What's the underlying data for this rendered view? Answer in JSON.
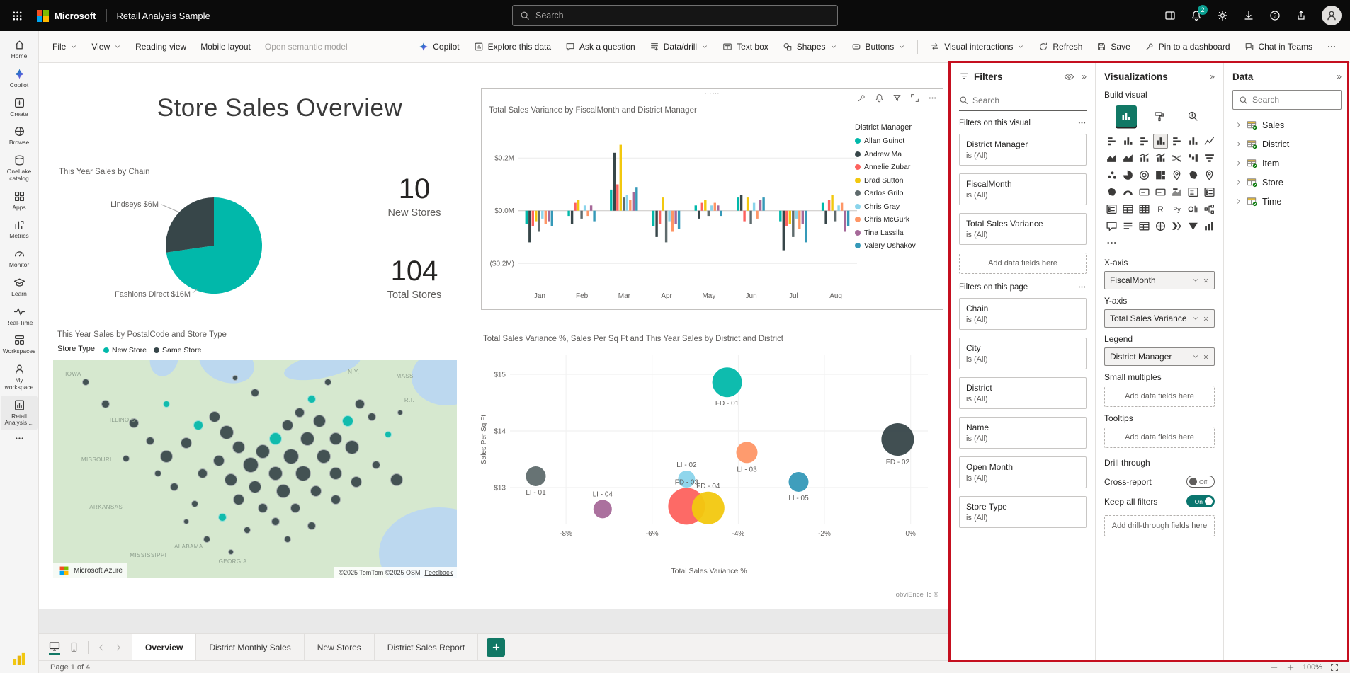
{
  "topbar": {
    "microsoft": "Microsoft",
    "title": "Retail Analysis Sample",
    "search_placeholder": "Search",
    "notification_count": "2"
  },
  "menubar": {
    "left": [
      {
        "label": "File",
        "caret": true
      },
      {
        "label": "View",
        "caret": true
      },
      {
        "label": "Reading view"
      },
      {
        "label": "Mobile layout"
      },
      {
        "label": "Open semantic model",
        "disabled": true
      }
    ],
    "right": [
      {
        "label": "Copilot",
        "icon": "copilot"
      },
      {
        "label": "Explore this data",
        "icon": "explore"
      },
      {
        "label": "Ask a question",
        "icon": "question"
      },
      {
        "label": "Data/drill",
        "icon": "datadrill",
        "caret": true
      },
      {
        "label": "Text box",
        "icon": "textbox"
      },
      {
        "label": "Shapes",
        "icon": "shapes",
        "caret": true
      },
      {
        "label": "Buttons",
        "icon": "buttons",
        "caret": true
      },
      {
        "label": "Visual interactions",
        "icon": "interactions",
        "caret": true,
        "divider_before": true
      },
      {
        "label": "Refresh",
        "icon": "refresh"
      },
      {
        "label": "Save",
        "icon": "save"
      },
      {
        "label": "Pin to a dashboard",
        "icon": "pin"
      },
      {
        "label": "Chat in Teams",
        "icon": "teams"
      },
      {
        "label": "",
        "icon": "more",
        "more": true
      }
    ]
  },
  "sidebar": {
    "items": [
      {
        "label": "Home",
        "icon": "home"
      },
      {
        "label": "Copilot",
        "icon": "copilotColor"
      },
      {
        "label": "Create",
        "icon": "create"
      },
      {
        "label": "Browse",
        "icon": "browse"
      },
      {
        "label": "OneLake catalog",
        "icon": "onelake"
      },
      {
        "label": "Apps",
        "icon": "apps"
      },
      {
        "label": "Metrics",
        "icon": "metrics"
      },
      {
        "label": "Monitor",
        "icon": "monitor"
      },
      {
        "label": "Learn",
        "icon": "learn"
      },
      {
        "label": "Real-Time",
        "icon": "realtime"
      },
      {
        "label": "Workspaces",
        "icon": "workspaces"
      },
      {
        "label": "My workspace",
        "icon": "myworkspace"
      },
      {
        "label": "Retail Analysis ...",
        "icon": "report",
        "active": true
      }
    ],
    "product": "Power BI"
  },
  "report": {
    "title": "Store Sales Overview",
    "kpis": [
      {
        "value": "10",
        "label": "New Stores"
      },
      {
        "value": "104",
        "label": "Total Stores"
      }
    ],
    "map_attribution_left": "Microsoft Azure",
    "map_attribution_right": "©2025 TomTom ©2025 OSM",
    "map_feedback": "Feedback",
    "scatter_watermark": "obviEnce llc ©"
  },
  "chart_data": [
    {
      "id": "pie",
      "type": "pie",
      "title": "This Year Sales by Chain",
      "slices": [
        {
          "label": "Fashions Direct",
          "value": 16,
          "display": "Fashions Direct $16M",
          "color": "#01B8AA"
        },
        {
          "label": "Lindseys",
          "value": 6,
          "display": "Lindseys $6M",
          "color": "#374649"
        }
      ]
    },
    {
      "id": "variance-bar",
      "type": "bar",
      "selected": true,
      "title": "Total Sales Variance by FiscalMonth and District Manager",
      "legend_title": "District Manager",
      "categories": [
        "Jan",
        "Feb",
        "Mar",
        "Apr",
        "May",
        "Jun",
        "Jul",
        "Aug"
      ],
      "y_ticks": [
        "$0.2M",
        "$0.0M",
        "($0.2M)"
      ],
      "y_tick_values": [
        0.2,
        0,
        -0.2
      ],
      "ylim": [
        -0.28,
        0.3
      ],
      "series": [
        {
          "name": "Allan Guinot",
          "color": "#01B8AA",
          "values": [
            -0.05,
            -0.02,
            0.08,
            -0.06,
            0.02,
            0.05,
            -0.04,
            0.03
          ]
        },
        {
          "name": "Andrew Ma",
          "color": "#374649",
          "values": [
            -0.12,
            -0.05,
            0.22,
            -0.1,
            -0.03,
            0.06,
            -0.15,
            -0.05
          ]
        },
        {
          "name": "Annelie Zubar",
          "color": "#FD625E",
          "values": [
            -0.06,
            0.03,
            0.1,
            -0.05,
            0.03,
            -0.04,
            -0.06,
            0.04
          ]
        },
        {
          "name": "Brad Sutton",
          "color": "#F2C80F",
          "values": [
            -0.04,
            0.04,
            0.25,
            0.05,
            0.04,
            0.05,
            -0.05,
            0.06
          ]
        },
        {
          "name": "Carlos Grilo",
          "color": "#5F6B6D",
          "values": [
            -0.08,
            -0.03,
            0.05,
            -0.12,
            -0.02,
            -0.05,
            -0.1,
            -0.04
          ]
        },
        {
          "name": "Chris Gray",
          "color": "#8AD4EB",
          "values": [
            -0.03,
            0.02,
            0.06,
            -0.04,
            0.02,
            0.03,
            -0.03,
            0.02
          ]
        },
        {
          "name": "Chris McGurk",
          "color": "#FE9666",
          "values": [
            -0.05,
            -0.02,
            0.04,
            -0.08,
            0.03,
            -0.03,
            -0.07,
            0.03
          ]
        },
        {
          "name": "Tina Lassila",
          "color": "#A66999",
          "values": [
            -0.04,
            0.02,
            0.07,
            -0.05,
            0.02,
            0.04,
            -0.05,
            -0.08
          ]
        },
        {
          "name": "Valery Ushakov",
          "color": "#3599B8",
          "values": [
            -0.06,
            -0.04,
            0.09,
            -0.07,
            -0.02,
            0.05,
            -0.12,
            -0.06
          ]
        }
      ]
    },
    {
      "id": "map",
      "type": "scatter",
      "subtype": "map",
      "title": "This Year Sales by PostalCode and Store Type",
      "legend_title": "Store Type",
      "legend": [
        {
          "label": "New Store",
          "color": "#01B8AA"
        },
        {
          "label": "Same Store",
          "color": "#374649"
        }
      ],
      "state_labels": [
        {
          "t": "IOWA",
          "x": 3,
          "y": 5
        },
        {
          "t": "ILLINOIS",
          "x": 14,
          "y": 26
        },
        {
          "t": "MISSOURI",
          "x": 7,
          "y": 44
        },
        {
          "t": "ARKANSAS",
          "x": 9,
          "y": 66
        },
        {
          "t": "MISSISSIPPI",
          "x": 19,
          "y": 88
        },
        {
          "t": "ALABAMA",
          "x": 30,
          "y": 84
        },
        {
          "t": "GEORGIA",
          "x": 41,
          "y": 91
        },
        {
          "t": "N.Y.",
          "x": 73,
          "y": 4
        },
        {
          "t": "MASS",
          "x": 85,
          "y": 6
        },
        {
          "t": "R.I.",
          "x": 87,
          "y": 17
        }
      ],
      "points": [
        [
          8,
          10,
          5,
          0
        ],
        [
          13,
          20,
          6,
          0
        ],
        [
          20,
          29,
          7,
          0
        ],
        [
          24,
          37,
          6,
          0
        ],
        [
          18,
          45,
          5,
          0
        ],
        [
          28,
          44,
          9,
          0
        ],
        [
          33,
          38,
          8,
          0
        ],
        [
          36,
          30,
          7,
          1
        ],
        [
          40,
          26,
          8,
          0
        ],
        [
          43,
          33,
          10,
          0
        ],
        [
          46,
          40,
          9,
          0
        ],
        [
          41,
          46,
          8,
          0
        ],
        [
          37,
          52,
          7,
          0
        ],
        [
          44,
          55,
          9,
          0
        ],
        [
          49,
          48,
          11,
          0
        ],
        [
          52,
          42,
          10,
          0
        ],
        [
          55,
          36,
          9,
          1
        ],
        [
          58,
          30,
          8,
          0
        ],
        [
          61,
          24,
          7,
          0
        ],
        [
          64,
          18,
          6,
          1
        ],
        [
          66,
          28,
          9,
          0
        ],
        [
          63,
          36,
          10,
          0
        ],
        [
          59,
          44,
          11,
          0
        ],
        [
          55,
          52,
          10,
          0
        ],
        [
          50,
          58,
          9,
          0
        ],
        [
          46,
          64,
          8,
          0
        ],
        [
          52,
          68,
          7,
          0
        ],
        [
          57,
          60,
          10,
          0
        ],
        [
          62,
          52,
          11,
          0
        ],
        [
          67,
          44,
          10,
          0
        ],
        [
          70,
          36,
          9,
          0
        ],
        [
          73,
          28,
          8,
          1
        ],
        [
          76,
          20,
          7,
          0
        ],
        [
          79,
          26,
          6,
          0
        ],
        [
          74,
          40,
          10,
          0
        ],
        [
          70,
          52,
          9,
          0
        ],
        [
          65,
          60,
          8,
          0
        ],
        [
          60,
          68,
          7,
          0
        ],
        [
          55,
          74,
          6,
          0
        ],
        [
          48,
          78,
          5,
          0
        ],
        [
          42,
          72,
          6,
          1
        ],
        [
          35,
          66,
          5,
          0
        ],
        [
          30,
          58,
          6,
          0
        ],
        [
          26,
          52,
          5,
          0
        ],
        [
          33,
          74,
          4,
          0
        ],
        [
          38,
          82,
          5,
          0
        ],
        [
          44,
          88,
          4,
          0
        ],
        [
          58,
          82,
          5,
          0
        ],
        [
          64,
          76,
          6,
          0
        ],
        [
          70,
          64,
          7,
          0
        ],
        [
          75,
          56,
          8,
          0
        ],
        [
          80,
          48,
          6,
          0
        ],
        [
          83,
          34,
          5,
          1
        ],
        [
          86,
          24,
          4,
          0
        ],
        [
          28,
          20,
          5,
          1
        ],
        [
          85,
          55,
          9,
          0
        ],
        [
          68,
          10,
          5,
          0
        ],
        [
          50,
          15,
          6,
          0
        ],
        [
          45,
          8,
          4,
          0
        ]
      ]
    },
    {
      "id": "bubble",
      "type": "scatter",
      "title": "Total Sales Variance %, Sales Per Sq Ft and This Year Sales by District and District",
      "xlabel": "Total Sales Variance %",
      "ylabel": "Sales Per Sq Ft",
      "x_ticks": [
        "-8%",
        "-6%",
        "-4%",
        "-2%",
        "0%"
      ],
      "x_tick_values": [
        -8,
        -6,
        -4,
        -2,
        0
      ],
      "y_ticks": [
        "$13",
        "$14",
        "$15"
      ],
      "y_tick_values": [
        13,
        14,
        15
      ],
      "xlim": [
        -9.3,
        0.4
      ],
      "ylim": [
        12.35,
        15.35
      ],
      "points": [
        {
          "label": "LI - 01",
          "x": -8.7,
          "y": 13.2,
          "r": 14,
          "color": "#5F6B6D",
          "label_pos": "below"
        },
        {
          "label": "LI - 04",
          "x": -7.15,
          "y": 12.62,
          "r": 13,
          "color": "#A66999",
          "label_pos": "above"
        },
        {
          "label": "LI - 02",
          "x": -5.2,
          "y": 13.15,
          "r": 12,
          "color": "#8AD4EB",
          "label_pos": "above"
        },
        {
          "label": "FD - 03",
          "x": -5.2,
          "y": 12.67,
          "r": 26,
          "color": "#FD625E",
          "label_pos": "above"
        },
        {
          "label": "FD - 04",
          "x": -4.7,
          "y": 12.64,
          "r": 23,
          "color": "#F2C80F",
          "label_pos": "above"
        },
        {
          "label": "FD - 01",
          "x": -4.26,
          "y": 14.86,
          "r": 21,
          "color": "#01B8AA",
          "label_pos": "below"
        },
        {
          "label": "LI - 03",
          "x": -3.8,
          "y": 13.62,
          "r": 15,
          "color": "#FE9666",
          "label_pos": "below"
        },
        {
          "label": "LI - 05",
          "x": -2.6,
          "y": 13.1,
          "r": 14,
          "color": "#3599B8",
          "label_pos": "below"
        },
        {
          "label": "FD - 02",
          "x": -0.3,
          "y": 13.85,
          "r": 23,
          "color": "#374649",
          "label_pos": "below"
        }
      ]
    }
  ],
  "filters_panel": {
    "title": "Filters",
    "search_placeholder": "Search",
    "sections": [
      {
        "heading": "Filters on this visual",
        "cards": [
          {
            "name": "District Manager",
            "value": "is (All)"
          },
          {
            "name": "FiscalMonth",
            "value": "is (All)"
          },
          {
            "name": "Total Sales Variance",
            "value": "is (All)"
          }
        ],
        "placeholder": "Add data fields here"
      },
      {
        "heading": "Filters on this page",
        "cards": [
          {
            "name": "Chain",
            "value": "is (All)"
          },
          {
            "name": "City",
            "value": "is (All)"
          },
          {
            "name": "District",
            "value": "is (All)"
          },
          {
            "name": "Name",
            "value": "is (All)"
          },
          {
            "name": "Open Month",
            "value": "is (All)"
          },
          {
            "name": "Store Type",
            "value": "is (All)"
          }
        ]
      }
    ]
  },
  "viz_panel": {
    "title": "Visualizations",
    "build_label": "Build visual",
    "selected_visual": "clustered-column-chart",
    "visual_types": [
      "stacked-bar-chart",
      "stacked-column-chart",
      "clustered-bar-chart",
      "clustered-column-chart",
      "100-stacked-bar-chart",
      "100-stacked-column-chart",
      "line-chart",
      "area-chart",
      "stacked-area-chart",
      "line-and-stacked-column-chart",
      "line-and-clustered-column-chart",
      "ribbon-chart",
      "waterfall-chart",
      "funnel-chart",
      "scatter-chart",
      "pie-chart",
      "donut-chart",
      "treemap",
      "map",
      "filled-map",
      "azure-map",
      "shape-map",
      "gauge",
      "card",
      "new-card",
      "kpi",
      "multi-row-card",
      "slicer",
      "new-slicer",
      "table",
      "matrix",
      "r-script-visual",
      "python-visual",
      "key-influencers",
      "decomposition-tree",
      "q-and-a",
      "smart-narrative",
      "paginated-report",
      "arcgis-map",
      "power-apps",
      "power-automate",
      "metrics",
      "get-more-visuals"
    ],
    "wells": [
      {
        "label": "X-axis",
        "pill": "FiscalMonth"
      },
      {
        "label": "Y-axis",
        "pill": "Total Sales Variance"
      },
      {
        "label": "Legend",
        "pill": "District Manager"
      },
      {
        "label": "Small multiples",
        "placeholder": "Add data fields here"
      },
      {
        "label": "Tooltips",
        "placeholder": "Add data fields here"
      }
    ],
    "drill": {
      "heading": "Drill through",
      "cross_report_label": "Cross-report",
      "cross_report_state": "Off",
      "keep_filters_label": "Keep all filters",
      "keep_filters_state": "On",
      "placeholder": "Add drill-through fields here"
    }
  },
  "data_panel": {
    "title": "Data",
    "search_placeholder": "Search",
    "tables": [
      "Sales",
      "District",
      "Item",
      "Store",
      "Time"
    ]
  },
  "footer": {
    "tabs": [
      {
        "label": "Overview",
        "active": true
      },
      {
        "label": "District Monthly Sales"
      },
      {
        "label": "New Stores"
      },
      {
        "label": "District Sales Report"
      }
    ],
    "page_status": "Page 1 of 4",
    "zoom": "100%"
  }
}
